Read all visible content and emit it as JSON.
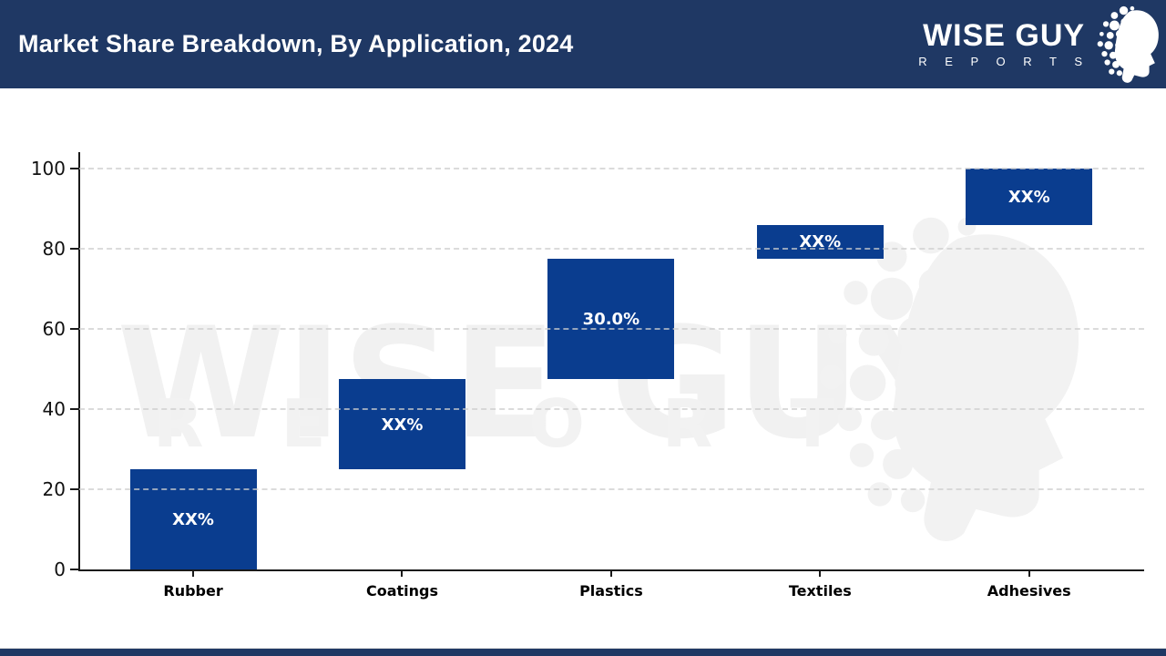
{
  "header": {
    "title": "Market Share Breakdown, By Application, 2024",
    "logo": {
      "name": "WISE GUY",
      "tagline": "R E P O R T S"
    }
  },
  "watermark": {
    "line1": "WISE GUY",
    "line2": "R E P O R T S"
  },
  "chart_data": {
    "type": "bar",
    "variant": "floating-waterfall",
    "title": "Market Share Breakdown, By Application, 2024",
    "xlabel": "",
    "ylabel": "",
    "ylim": [
      0,
      100
    ],
    "yticks": [
      0,
      20,
      40,
      60,
      80,
      100
    ],
    "grid": "horizontal-dashed",
    "legend": null,
    "categories": [
      "Rubber",
      "Coatings",
      "Plastics",
      "Textiles",
      "Adhesives"
    ],
    "segments": [
      {
        "category": "Rubber",
        "start": 0,
        "end": 25,
        "label": "XX%"
      },
      {
        "category": "Coatings",
        "start": 25,
        "end": 47.5,
        "label": "XX%"
      },
      {
        "category": "Plastics",
        "start": 47.5,
        "end": 77.5,
        "label": "30.0%"
      },
      {
        "category": "Textiles",
        "start": 77.5,
        "end": 86,
        "label": "XX%"
      },
      {
        "category": "Adhesives",
        "start": 86,
        "end": 100,
        "label": "XX%"
      }
    ]
  },
  "colors": {
    "header_bg": "#1f3864",
    "footer_bg": "#1f3864",
    "bar": "#0a3d8f",
    "watermark": "#f1f1f1",
    "axis": "#1a1a1a"
  }
}
